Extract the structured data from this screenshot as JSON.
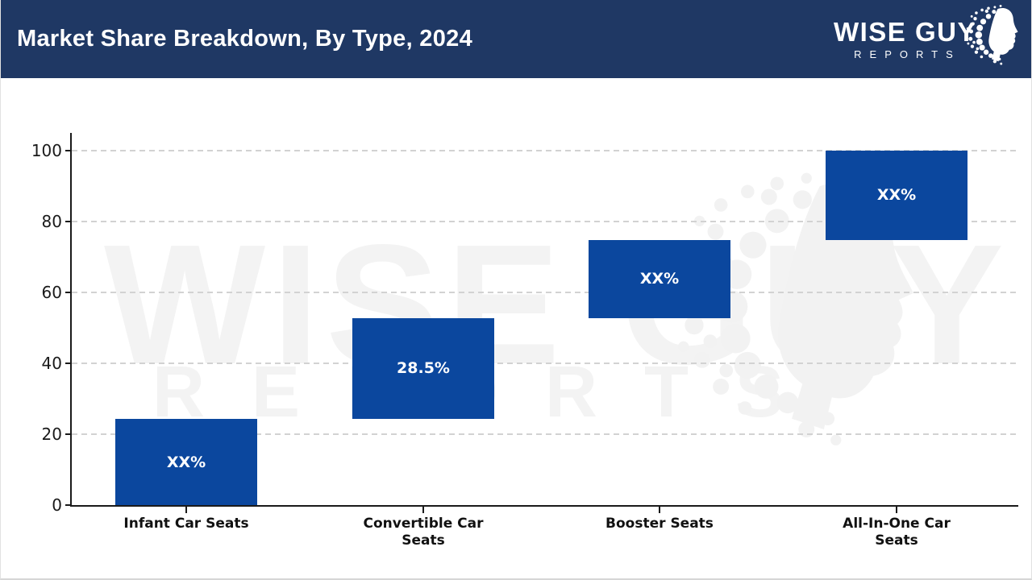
{
  "header": {
    "title": "Market Share Breakdown, By Type, 2024",
    "logo": {
      "line1": "WISE GUY",
      "line2": "REPORTS"
    }
  },
  "watermark": {
    "line1": "WISE GUY",
    "line2": "REPORTS"
  },
  "colors": {
    "header_bg": "#1F3864",
    "bar": "#0B479E",
    "bar_label": "#ffffff",
    "grid": "#d2d2d2",
    "axis": "#1a1a1a",
    "watermark": "#f3f3f3"
  },
  "chart_data": {
    "type": "bar",
    "subtype": "waterfall",
    "title": "Market Share Breakdown, By Type, 2024",
    "categories": [
      "Infant Car Seats",
      "Convertible Car Seats",
      "Booster Seats",
      "All-In-One Car Seats"
    ],
    "segments": [
      {
        "category": "Infant Car Seats",
        "start": 0,
        "end": 24.3,
        "value": 24.3,
        "label": "XX%"
      },
      {
        "category": "Convertible Car Seats",
        "start": 24.3,
        "end": 52.8,
        "value": 28.5,
        "label": "28.5%"
      },
      {
        "category": "Booster Seats",
        "start": 52.8,
        "end": 74.8,
        "value": 22.0,
        "label": "XX%"
      },
      {
        "category": "All-In-One Car Seats",
        "start": 74.8,
        "end": 100,
        "value": 25.2,
        "label": "XX%"
      }
    ],
    "yticks": [
      0,
      20,
      40,
      60,
      80,
      100
    ],
    "ylim": [
      0,
      105
    ],
    "xlabel": "",
    "ylabel": "",
    "grid": "horizontal-dashed",
    "legend": "none"
  }
}
